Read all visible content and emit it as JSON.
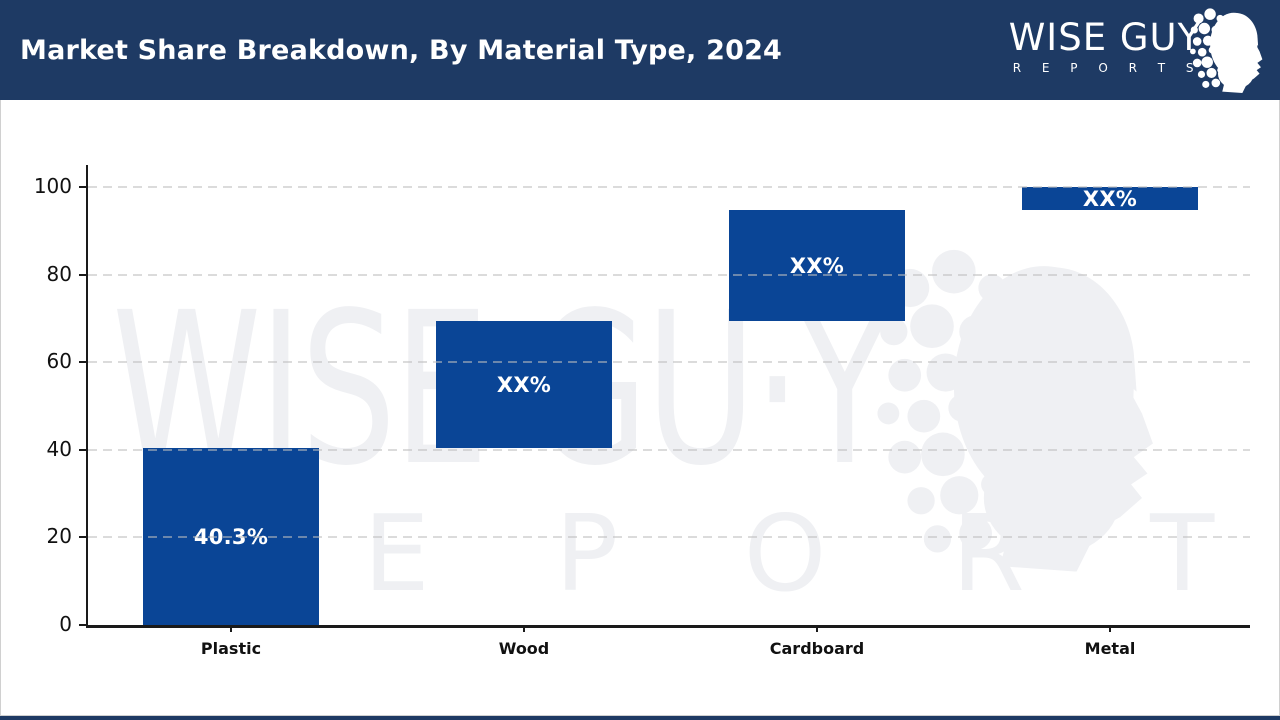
{
  "header": {
    "title": "Market Share Breakdown, By Material Type, 2024",
    "logo": {
      "primary": "WISE GUY",
      "secondary": "R E P O R T S"
    }
  },
  "watermark": {
    "primary": "WISE GU·Y",
    "secondary": "R E P O R T S"
  },
  "colors": {
    "header_bg": "#1E3A64",
    "footer_bar": "#1E3A64",
    "bar_fill": "#0A4596",
    "bar_label_text": "#FFFFFF",
    "axis": "#1A1A1A",
    "tick_label": "#111111",
    "gridline_rgba": "rgba(190,190,190,0.55)",
    "watermark": "#EFF0F3",
    "page_bg": "#FFFFFF"
  },
  "chart_data": {
    "type": "bar",
    "subtype": "floating-waterfall",
    "title": "Market Share Breakdown, By Material Type, 2024",
    "categories": [
      "Plastic",
      "Wood",
      "Cardboard",
      "Metal"
    ],
    "series": [
      {
        "name": "Market share (%)",
        "segments": [
          {
            "category": "Plastic",
            "from": 0,
            "to": 40.3,
            "label": "40.3%"
          },
          {
            "category": "Wood",
            "from": 40.3,
            "to": 69.4,
            "label": "XX%"
          },
          {
            "category": "Cardboard",
            "from": 69.4,
            "to": 94.7,
            "label": "XX%"
          },
          {
            "category": "Metal",
            "from": 94.7,
            "to": 100,
            "label": "XX%"
          }
        ]
      }
    ],
    "xlabel": "",
    "ylabel": "",
    "ylim": [
      0,
      100
    ],
    "yticks": [
      0,
      20,
      40,
      60,
      80,
      100
    ],
    "grid": "horizontal-dashed",
    "legend_position": "none"
  }
}
